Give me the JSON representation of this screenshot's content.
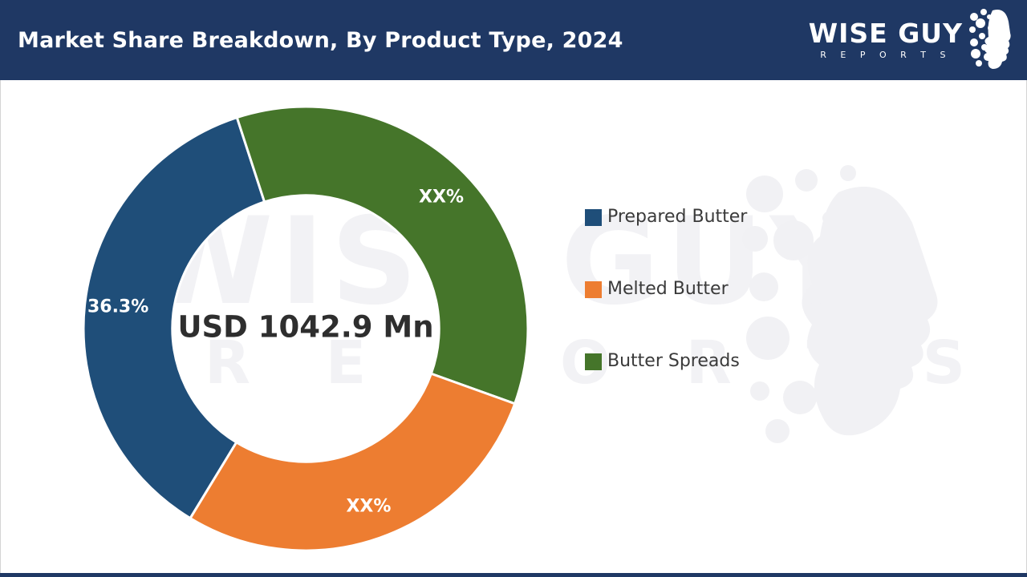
{
  "header": {
    "title": "Market Share Breakdown, By Product Type, 2024",
    "logo": {
      "name": "WISE GUY",
      "sub": "R E P O R T S"
    },
    "bg_color": "#1f3864"
  },
  "watermark": {
    "line1": "WISE GUY",
    "line2": "R E P O R T S"
  },
  "chart_data": {
    "type": "donut",
    "title": "Market Share Breakdown, By Product Type, 2024",
    "center_label": "USD 1042.9 Mn",
    "start_angle_deg": 211.3,
    "clockwise": true,
    "inner_radius_ratio": 0.6,
    "segments": [
      {
        "label": "Prepared Butter",
        "value": 36.3,
        "display": "36.3%",
        "color": "#1f4e79"
      },
      {
        "label": "Butter Spreads",
        "value": 35.5,
        "display": "XX%",
        "color": "#45752a"
      },
      {
        "label": "Melted Butter",
        "value": 28.2,
        "display": "XX%",
        "color": "#ed7d31"
      }
    ],
    "legend": [
      {
        "label": "Prepared Butter",
        "color": "#1f4e79"
      },
      {
        "label": "Melted Butter",
        "color": "#ed7d31"
      },
      {
        "label": "Butter Spreads",
        "color": "#45752a"
      }
    ],
    "legend_position": "right"
  },
  "footer": {
    "bg_color": "#1f3864"
  }
}
